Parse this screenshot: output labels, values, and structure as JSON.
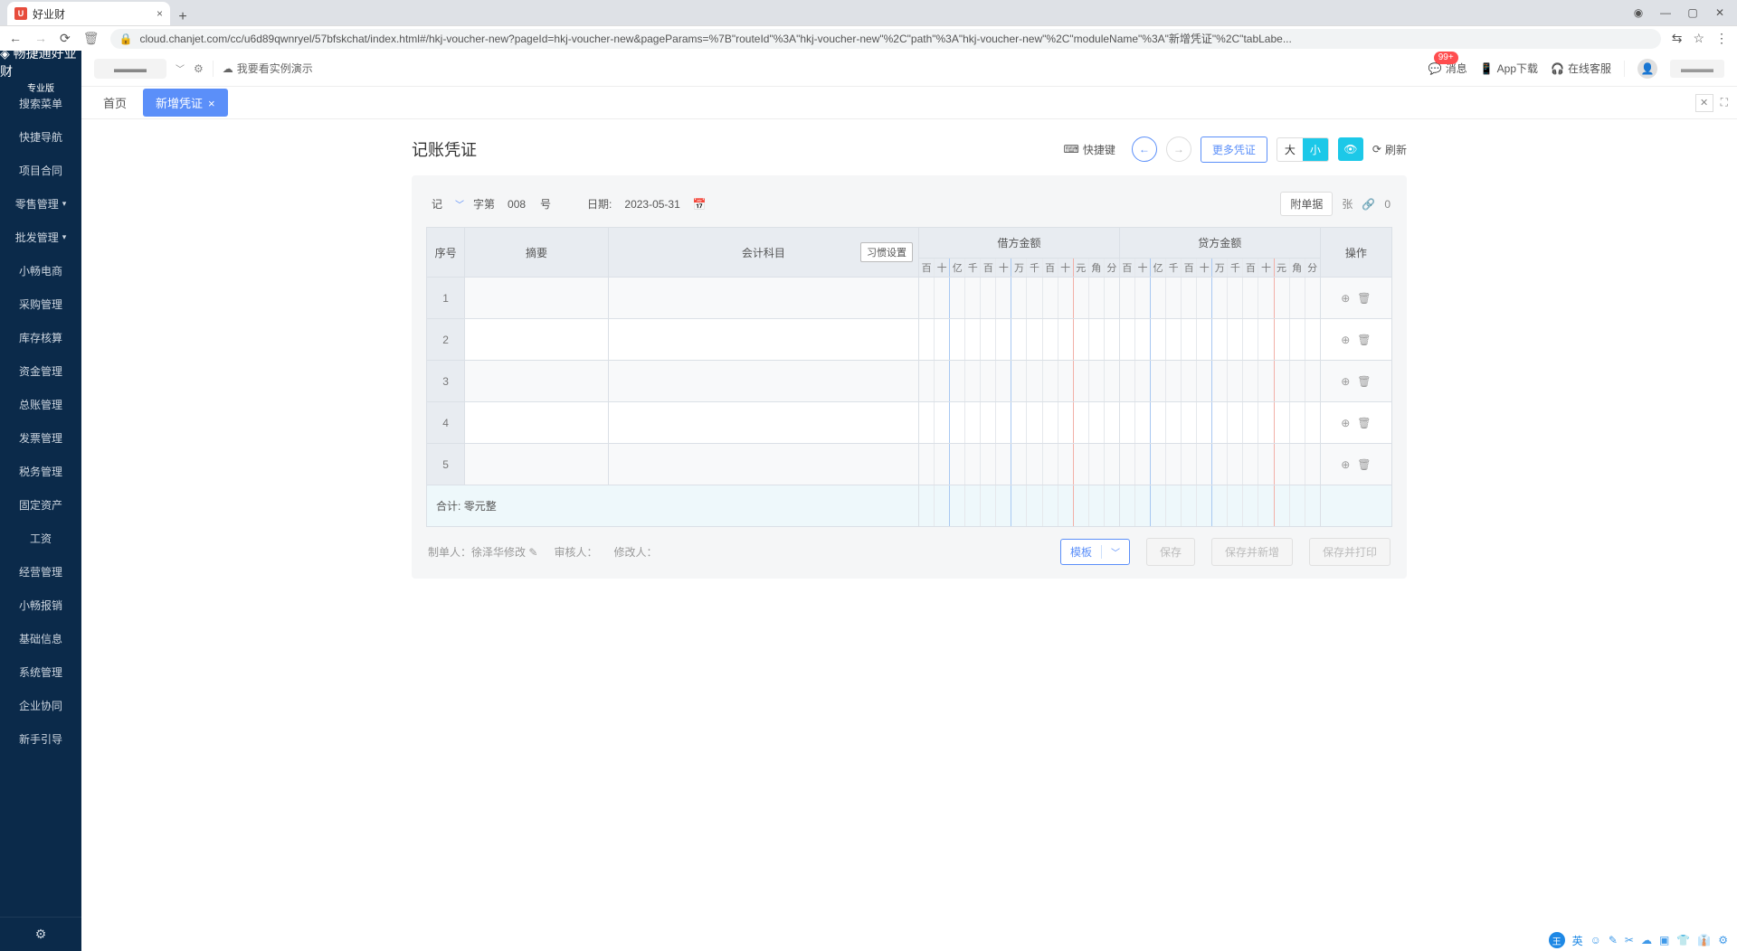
{
  "browser": {
    "tab_title": "好业财",
    "url": "cloud.chanjet.com/cc/u6d89qwnryel/57bfskchat/index.html#/hkj-voucher-new?pageId=hkj-voucher-new&pageParams=%7B\"routeId\"%3A\"hkj-voucher-new\"%2C\"path\"%3A\"hkj-voucher-new\"%2C\"moduleName\"%3A\"新增凭证\"%2C\"tabLabe..."
  },
  "sidebar": {
    "logo_top": "畅捷通好业财",
    "logo_sub": "专业版",
    "items": [
      {
        "label": "搜索菜单",
        "has_caret": false
      },
      {
        "label": "快捷导航",
        "has_caret": false
      },
      {
        "label": "项目合同",
        "has_caret": false
      },
      {
        "label": "零售管理",
        "has_caret": true
      },
      {
        "label": "批发管理",
        "has_caret": true
      },
      {
        "label": "小畅电商",
        "has_caret": false
      },
      {
        "label": "采购管理",
        "has_caret": false
      },
      {
        "label": "库存核算",
        "has_caret": false
      },
      {
        "label": "资金管理",
        "has_caret": false
      },
      {
        "label": "总账管理",
        "has_caret": false
      },
      {
        "label": "发票管理",
        "has_caret": false
      },
      {
        "label": "税务管理",
        "has_caret": false
      },
      {
        "label": "固定资产",
        "has_caret": false
      },
      {
        "label": "工资",
        "has_caret": false
      },
      {
        "label": "经营管理",
        "has_caret": false
      },
      {
        "label": "小畅报销",
        "has_caret": false
      },
      {
        "label": "基础信息",
        "has_caret": false
      },
      {
        "label": "系统管理",
        "has_caret": false
      },
      {
        "label": "企业协同",
        "has_caret": false
      },
      {
        "label": "新手引导",
        "has_caret": false
      }
    ]
  },
  "topbar": {
    "demo_label": "我要看实例演示",
    "msg_label": "消息",
    "msg_badge": "99+",
    "app_download": "App下载",
    "online_service": "在线客服"
  },
  "tabs": {
    "home": "首页",
    "current": "新增凭证"
  },
  "page": {
    "title": "记账凭证",
    "shortcut": "快捷键",
    "more_voucher": "更多凭证",
    "size_large": "大",
    "size_small": "小",
    "refresh": "刷新"
  },
  "voucher_meta": {
    "type": "记",
    "zihao_label": "字第",
    "number": "008",
    "hao": "号",
    "date_label": "日期:",
    "date_value": "2023-05-31",
    "attach_btn": "附单据",
    "zhang": "张",
    "attach_count": "0"
  },
  "table": {
    "col_seq": "序号",
    "col_summary": "摘要",
    "col_subject": "会计科目",
    "habit_btn": "习惯设置",
    "col_debit": "借方金额",
    "col_credit": "贷方金额",
    "col_op": "操作",
    "digits": [
      "百",
      "十",
      "亿",
      "千",
      "百",
      "十",
      "万",
      "千",
      "百",
      "十",
      "元",
      "角",
      "分"
    ],
    "row_ids": [
      "1",
      "2",
      "3",
      "4",
      "5"
    ],
    "total_label": "合计:",
    "total_text": "零元整"
  },
  "footer": {
    "maker_label": "制单人：",
    "maker_name": "徐泽华修改",
    "auditor_label": "审核人：",
    "modifier_label": "修改人：",
    "template_btn": "模板",
    "save_btn": "保存",
    "save_new_btn": "保存并新增",
    "save_print_btn": "保存并打印"
  },
  "taskbar": {
    "ime": "王",
    "lang": "英"
  }
}
